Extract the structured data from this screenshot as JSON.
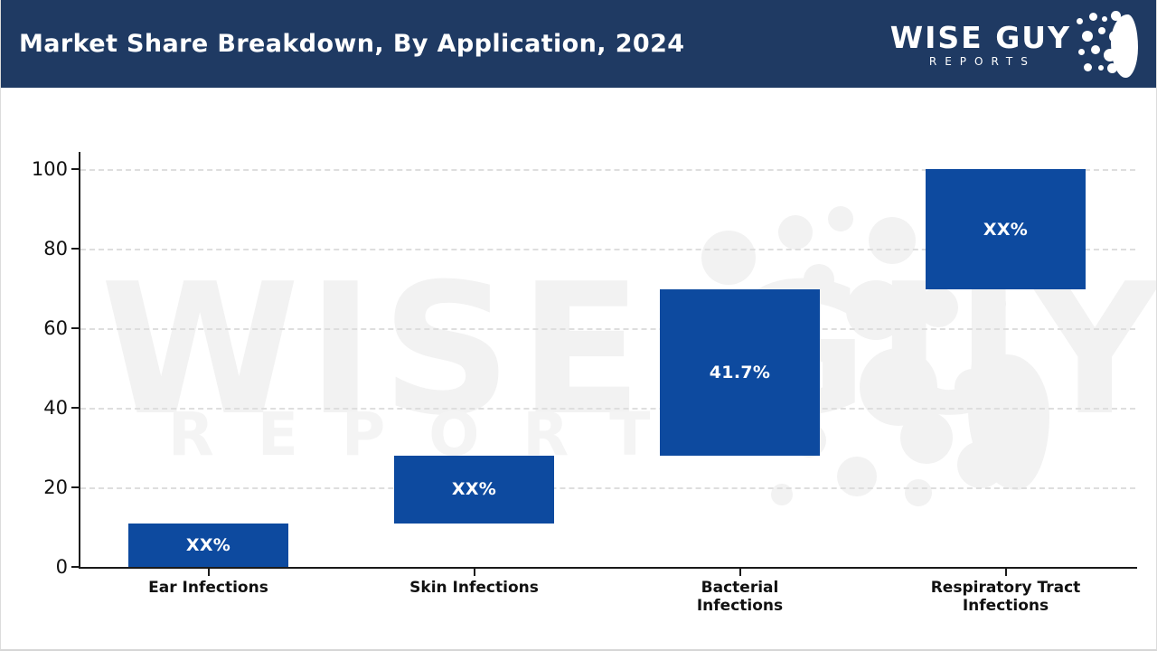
{
  "header": {
    "title": "Market Share Breakdown, By Application, 2024",
    "background_color": "#1f3a63",
    "logo": {
      "line1": "WISE GUY",
      "line2": "REPORTS"
    }
  },
  "watermark": {
    "line1": "WISE GUY",
    "line2": "REPORT"
  },
  "chart_data": {
    "type": "bar",
    "variant": "floating-waterfall",
    "title": "Market Share Breakdown, By Application, 2024",
    "xlabel": "",
    "ylabel": "",
    "ylim": [
      0,
      100
    ],
    "yticks": [
      0,
      20,
      40,
      60,
      80,
      100
    ],
    "grid": "horizontal-dashed",
    "legend": "none",
    "bar_color": "#0d4a9f",
    "value_label_color": "#ffffff",
    "categories": [
      "Ear Infections",
      "Skin Infections",
      "Bacterial Infections",
      "Respiratory Tract Infections"
    ],
    "segments": [
      {
        "category_lines": [
          "Ear Infections"
        ],
        "start": 0,
        "end": 11,
        "label": "XX%"
      },
      {
        "category_lines": [
          "Skin Infections"
        ],
        "start": 11,
        "end": 28,
        "label": "XX%"
      },
      {
        "category_lines": [
          "Bacterial",
          "Infections"
        ],
        "start": 28,
        "end": 69.7,
        "label": "41.7%"
      },
      {
        "category_lines": [
          "Respiratory Tract",
          "Infections"
        ],
        "start": 69.7,
        "end": 100,
        "label": "XX%"
      }
    ]
  }
}
